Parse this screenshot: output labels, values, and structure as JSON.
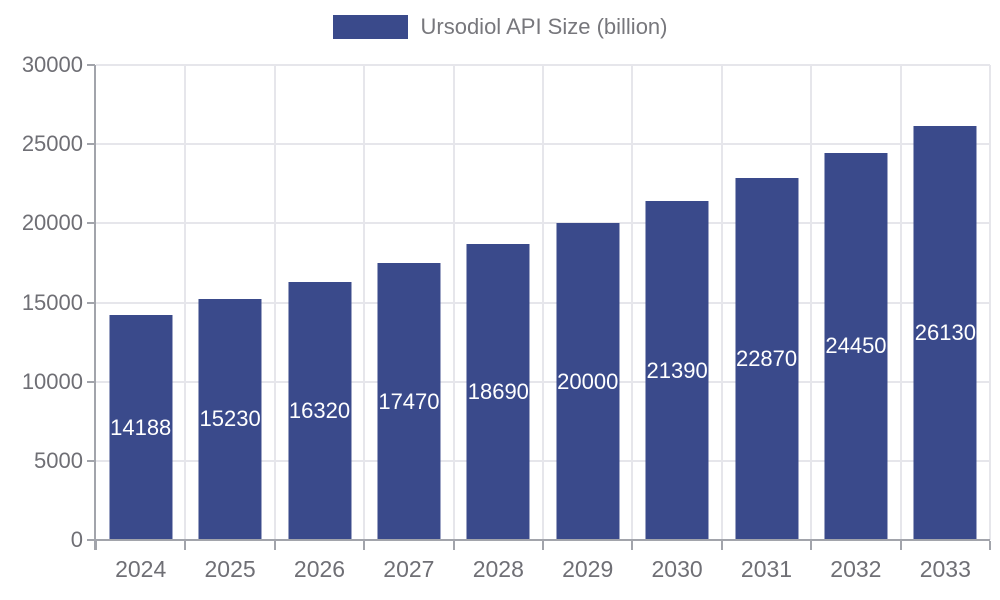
{
  "colors": {
    "bg": "#FFFFFF",
    "bar": "#3A4A8B",
    "grid": "#E6E6EB",
    "axis": "#A2A4AB",
    "tick-text": "#6F6F75",
    "legend-text": "#77777C",
    "value-text": "#FFFFFF"
  },
  "legend": {
    "label": "Ursodiol API Size (billion)"
  },
  "chart_data": {
    "type": "bar",
    "title": "",
    "legend_entries": [
      "Ursodiol API Size (billion)"
    ],
    "legend_position": "top-center",
    "categories": [
      "2024",
      "2025",
      "2026",
      "2027",
      "2028",
      "2029",
      "2030",
      "2031",
      "2032",
      "2033"
    ],
    "values": [
      14188,
      15230,
      16320,
      17470,
      18690,
      20000,
      21390,
      22870,
      24450,
      26130
    ],
    "data_labels": [
      "14188",
      "15230",
      "16320",
      "17470",
      "18690",
      "20000",
      "21390",
      "22870",
      "24450",
      "26130"
    ],
    "xlabel": "",
    "ylabel": "",
    "ylim": [
      0,
      30000
    ],
    "yticks": [
      0,
      5000,
      10000,
      15000,
      20000,
      25000,
      30000
    ],
    "grid": true
  }
}
